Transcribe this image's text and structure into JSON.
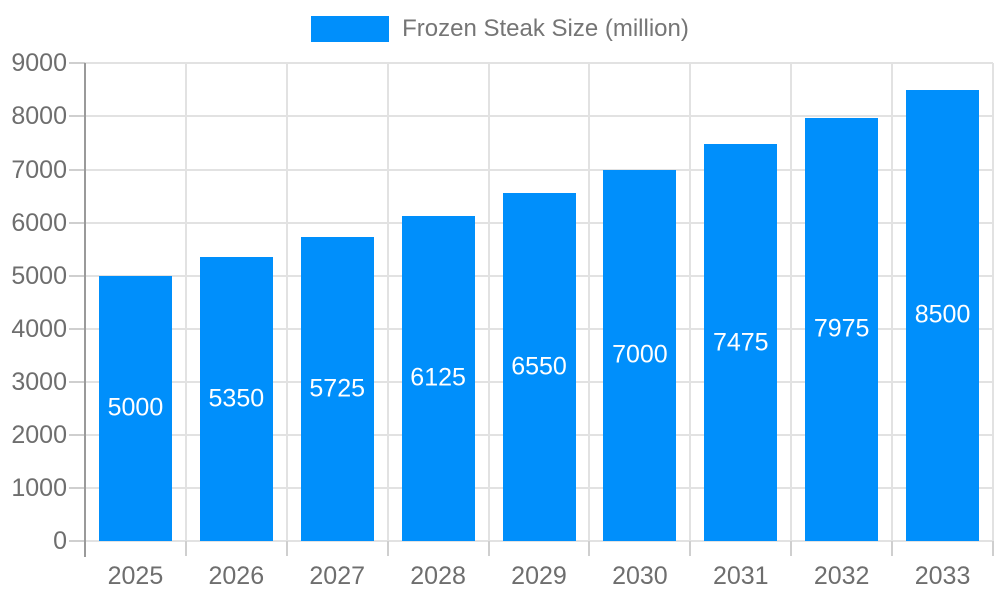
{
  "legend": {
    "label": "Frozen Steak Size (million)"
  },
  "chart_data": {
    "type": "bar",
    "title": "",
    "categories": [
      "2025",
      "2026",
      "2027",
      "2028",
      "2029",
      "2030",
      "2031",
      "2032",
      "2033"
    ],
    "series": [
      {
        "name": "Frozen Steak Size (million)",
        "values": [
          5000,
          5350,
          5725,
          6125,
          6550,
          7000,
          7475,
          7975,
          8500
        ]
      }
    ],
    "bar_value_labels": [
      "5000",
      "5350",
      "5725",
      "6125",
      "6550",
      "7000",
      "7475",
      "7975",
      "8500"
    ],
    "xlabel": "",
    "ylabel": "",
    "ylim": [
      0,
      9000
    ],
    "yticks": [
      0,
      1000,
      2000,
      3000,
      4000,
      5000,
      6000,
      7000,
      8000,
      9000
    ],
    "ytick_step": 1000,
    "grid": true,
    "legend_position": "top",
    "colors": {
      "bar": "#008FFB",
      "bar_label": "#FFFFFF",
      "grid": "#E2E2E2",
      "tick": "#CFCFCF",
      "axis": "#9A9A9A",
      "axis_label": "#6E6E6E",
      "legend_text": "#757575",
      "background": "#FFFFFF"
    }
  }
}
